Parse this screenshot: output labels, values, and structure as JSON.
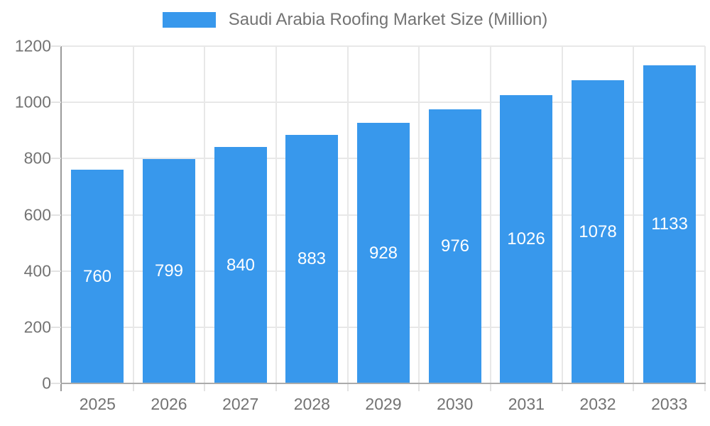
{
  "chart_data": {
    "type": "bar",
    "title": "Saudi Arabia Roofing Market Size (Million)",
    "series_name": "Saudi Arabia Roofing Market Size (Million)",
    "categories": [
      "2025",
      "2026",
      "2027",
      "2028",
      "2029",
      "2030",
      "2031",
      "2032",
      "2033"
    ],
    "values": [
      760,
      799,
      840,
      883,
      928,
      976,
      1026,
      1078,
      1133
    ],
    "xlabel": "",
    "ylabel": "",
    "ylim": [
      0,
      1200
    ],
    "yticks": [
      0,
      200,
      400,
      600,
      800,
      1000,
      1200
    ],
    "grid": true,
    "legend_position": "top",
    "bar_color": "#3898ec",
    "bar_label_color": "#ffffff",
    "axis_text_color": "#737373",
    "grid_color": "#e8e8e8"
  }
}
